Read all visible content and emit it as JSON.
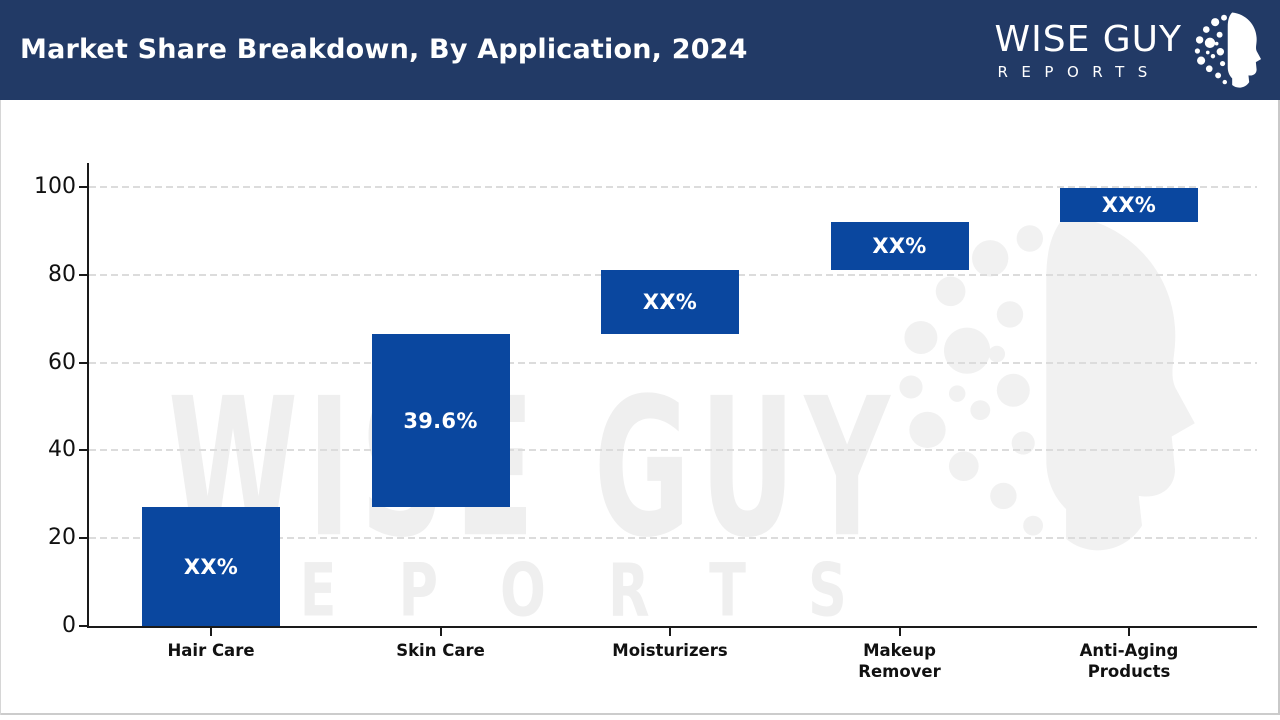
{
  "header": {
    "title": "Market Share Breakdown, By Application, 2024",
    "bg_color": "#223a66",
    "logo": {
      "line1": "WISE GUY",
      "line2": "REPORTS"
    }
  },
  "watermark": {
    "line1": "WISE GUY",
    "line2": "REPORTS"
  },
  "chart_data": {
    "type": "bar",
    "subtype": "waterfall",
    "title": "Market Share Breakdown, By Application, 2024",
    "categories": [
      "Hair Care",
      "Skin Care",
      "Moisturizers",
      "Makeup Remover",
      "Anti-Aging Products"
    ],
    "segments": [
      {
        "category": "Hair Care",
        "start": 0,
        "end": 27,
        "label": "XX%"
      },
      {
        "category": "Skin Care",
        "start": 27,
        "end": 66.6,
        "label": "39.6%"
      },
      {
        "category": "Moisturizers",
        "start": 66.6,
        "end": 81,
        "label": "XX%"
      },
      {
        "category": "Makeup Remover",
        "start": 81,
        "end": 92,
        "label": "XX%"
      },
      {
        "category": "Anti-Aging Products",
        "start": 92,
        "end": 99.7,
        "label": "XX%"
      }
    ],
    "visible_value_labels": [
      "XX%",
      "39.6%",
      "XX%",
      "XX%",
      "XX%"
    ],
    "yticks": [
      0,
      20,
      40,
      60,
      80,
      100
    ],
    "ylim": [
      0,
      105
    ],
    "xlabel": "",
    "ylabel": "",
    "grid": {
      "axis": "y",
      "style": "dashed",
      "color": "#dcdcdc"
    },
    "legend": null,
    "bar_color": "#0a479f",
    "bar_label_color": "#ffffff",
    "axis_color": "#1a1a1a"
  }
}
